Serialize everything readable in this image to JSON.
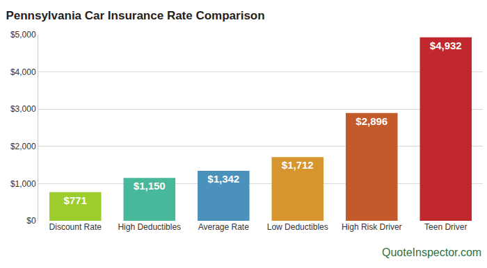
{
  "chart_data": {
    "type": "bar",
    "title": "Pennsylvania Car Insurance Rate Comparison",
    "categories": [
      "Discount Rate",
      "High Deductibles",
      "Average Rate",
      "Low Deductibles",
      "High Risk Driver",
      "Teen Driver"
    ],
    "values": [
      771,
      1150,
      1342,
      1712,
      2896,
      4932
    ],
    "value_labels": [
      "$771",
      "$1,150",
      "$1,342",
      "$1,712",
      "$2,896",
      "$4,932"
    ],
    "colors": [
      "#9ccc2e",
      "#47b89a",
      "#4a92bb",
      "#d6952e",
      "#c25a2b",
      "#c0282e"
    ],
    "ylim": [
      0,
      5000
    ],
    "yticks": [
      {
        "value": 0,
        "label": "$0"
      },
      {
        "value": 1000,
        "label": "$1,000"
      },
      {
        "value": 2000,
        "label": "$2,000"
      },
      {
        "value": 3000,
        "label": "$3,000"
      },
      {
        "value": 4000,
        "label": "$4,000"
      },
      {
        "value": 5000,
        "label": "$5,000"
      }
    ],
    "grid": true,
    "data_labels": true,
    "annotations": [
      "QuoteInspector.com"
    ]
  }
}
